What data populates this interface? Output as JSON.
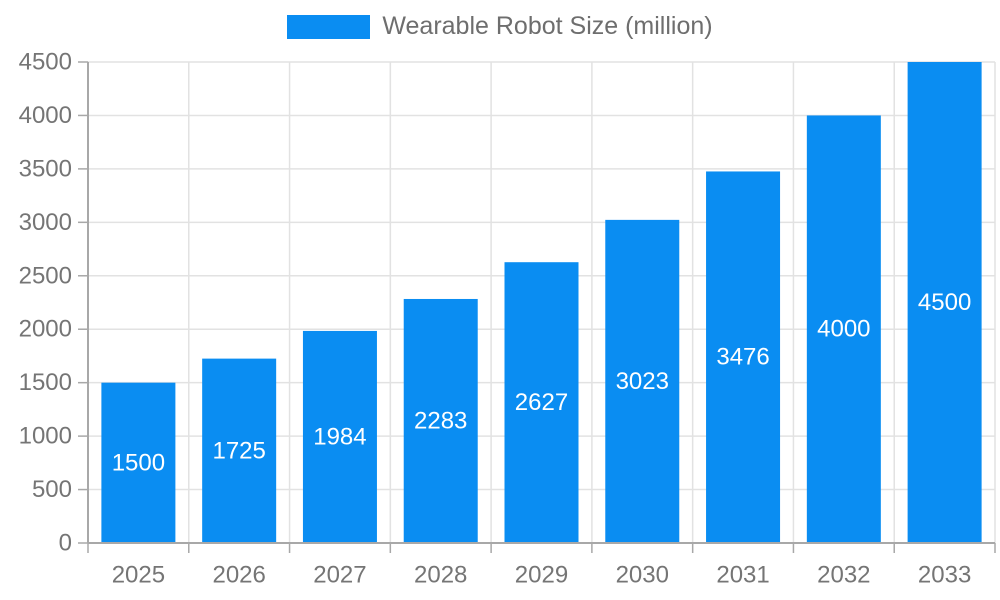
{
  "chart_data": {
    "type": "bar",
    "title": "Wearable Robot Size (million)",
    "series_name": "Wearable Robot Size (million)",
    "categories": [
      "2025",
      "2026",
      "2027",
      "2028",
      "2029",
      "2030",
      "2031",
      "2032",
      "2033"
    ],
    "values": [
      1500,
      1725,
      1984,
      2283,
      2627,
      3023,
      3476,
      4000,
      4500
    ],
    "bar_labels": [
      "1500",
      "1725",
      "1984",
      "2283",
      "2627",
      "3023",
      "3476",
      "4000",
      "4500"
    ],
    "xlabel": "",
    "ylabel": "",
    "ylim": [
      0,
      4500
    ],
    "ytick_step": 500,
    "yticks": [
      0,
      500,
      1000,
      1500,
      2000,
      2500,
      3000,
      3500,
      4000,
      4500
    ],
    "grid": true,
    "legend_position": "top-center"
  },
  "legend": {
    "label": "Wearable Robot Size (million)"
  },
  "colors": {
    "background": "#ffffff",
    "bar": "#0a8df2",
    "bar_label": "#ffffff",
    "grid_line": "#e2e2e2",
    "axis_line": "#a8a8a8",
    "tick_mark": "#a8a8a8",
    "tick_label": "#757575",
    "legend_text": "#6e6e6e"
  }
}
